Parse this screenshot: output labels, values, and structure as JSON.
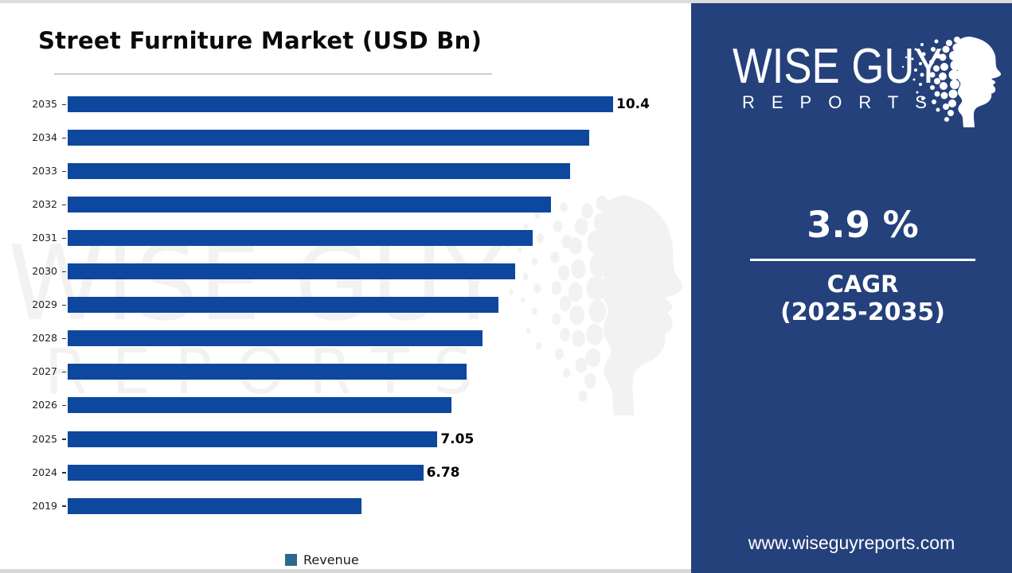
{
  "title": "Street Furniture Market (USD Bn)",
  "legend": {
    "label": "Revenue",
    "color": "#2b6a8f"
  },
  "chart_data": {
    "type": "bar",
    "orientation": "horizontal",
    "title": "Street Furniture Market (USD Bn)",
    "categories": [
      "2035",
      "2034",
      "2033",
      "2032",
      "2031",
      "2030",
      "2029",
      "2028",
      "2027",
      "2026",
      "2025",
      "2024",
      "2019"
    ],
    "values": [
      10.4,
      9.95,
      9.58,
      9.22,
      8.87,
      8.54,
      8.22,
      7.91,
      7.61,
      7.32,
      7.05,
      6.78,
      5.6
    ],
    "value_labels": [
      "10.4",
      "",
      "",
      "",
      "",
      "",
      "",
      "",
      "",
      "",
      "7.05",
      "6.78",
      ""
    ],
    "series_name": "Revenue",
    "bar_color": "#0e479e",
    "xlim": [
      0,
      10.4
    ],
    "legend_position": "bottom"
  },
  "watermark": {
    "line1": "WISE GUY",
    "line2": "REPORTS"
  },
  "panel": {
    "bg_color": "#25417c",
    "logo_line1": "WISE GUY",
    "logo_line2": "REPORTS",
    "cagr_value": "3.9 %",
    "cagr_label": "CAGR",
    "cagr_range": "(2025-2035)",
    "website": "www.wiseguyreports.com"
  }
}
